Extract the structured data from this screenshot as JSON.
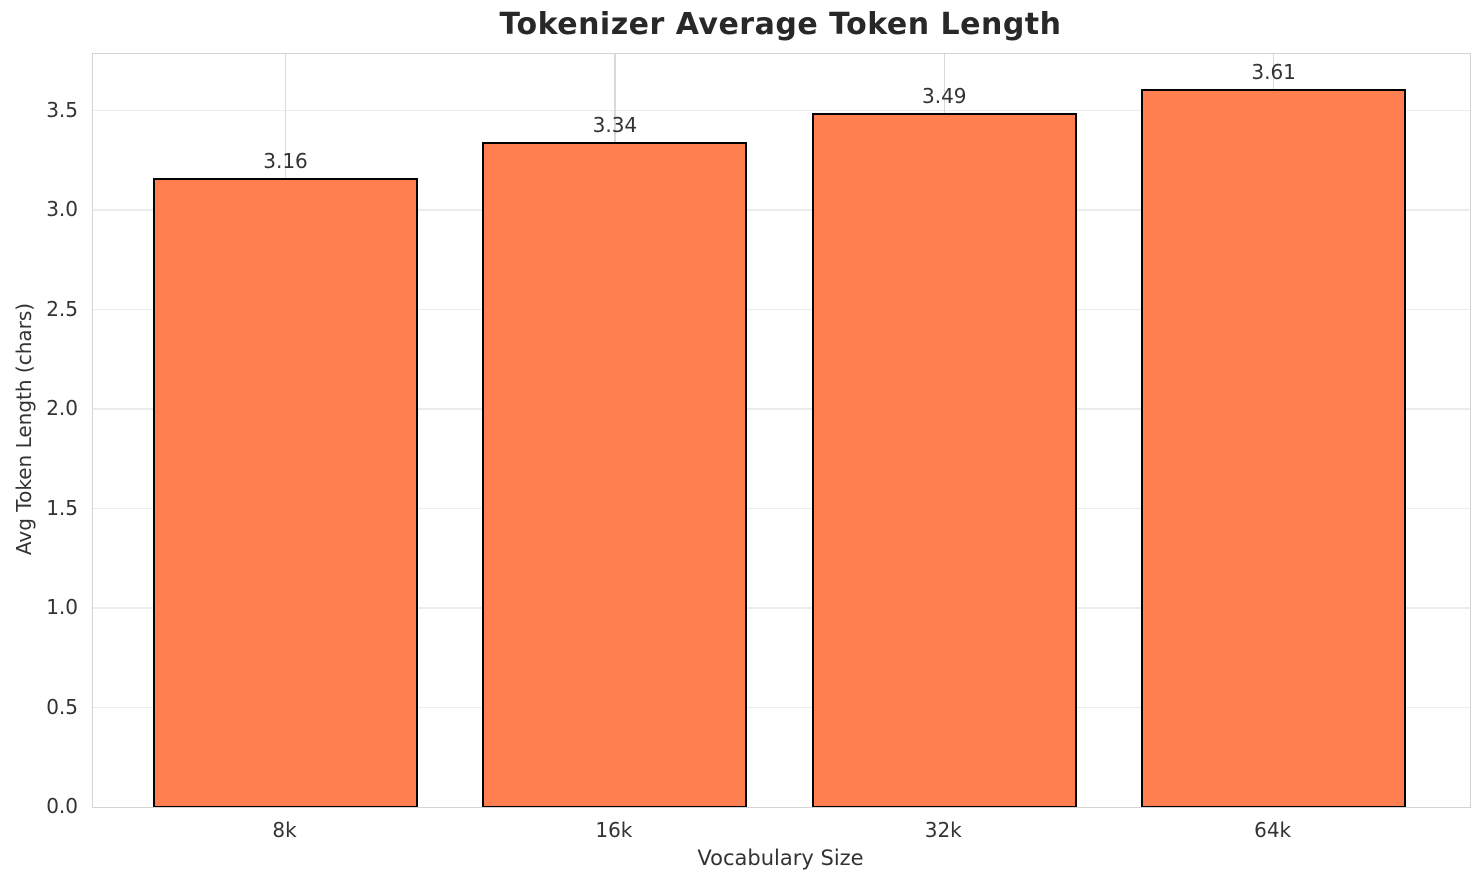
{
  "chart_data": {
    "type": "bar",
    "title": "Tokenizer Average Token Length",
    "xlabel": "Vocabulary Size",
    "ylabel": "Avg Token Length (chars)",
    "categories": [
      "8k",
      "16k",
      "32k",
      "64k"
    ],
    "values": [
      3.16,
      3.34,
      3.49,
      3.61
    ],
    "value_labels": [
      "3.16",
      "3.34",
      "3.49",
      "3.61"
    ],
    "ytick_labels": [
      "0.0",
      "0.5",
      "1.0",
      "1.5",
      "2.0",
      "2.5",
      "3.0",
      "3.5"
    ],
    "ytick_values": [
      0.0,
      0.5,
      1.0,
      1.5,
      2.0,
      2.5,
      3.0,
      3.5
    ],
    "ylim": [
      0,
      3.784
    ],
    "grid": true,
    "legend": null,
    "bar_color": "#FF7F50",
    "bar_edge_color": "#000000",
    "text_color": "#333333",
    "title_color": "#282828",
    "gridline_h_color": "#ececec",
    "gridline_v_color": "#d9d9d9",
    "spine_color": "#d4d4d4",
    "background_color": "#ffffff"
  }
}
